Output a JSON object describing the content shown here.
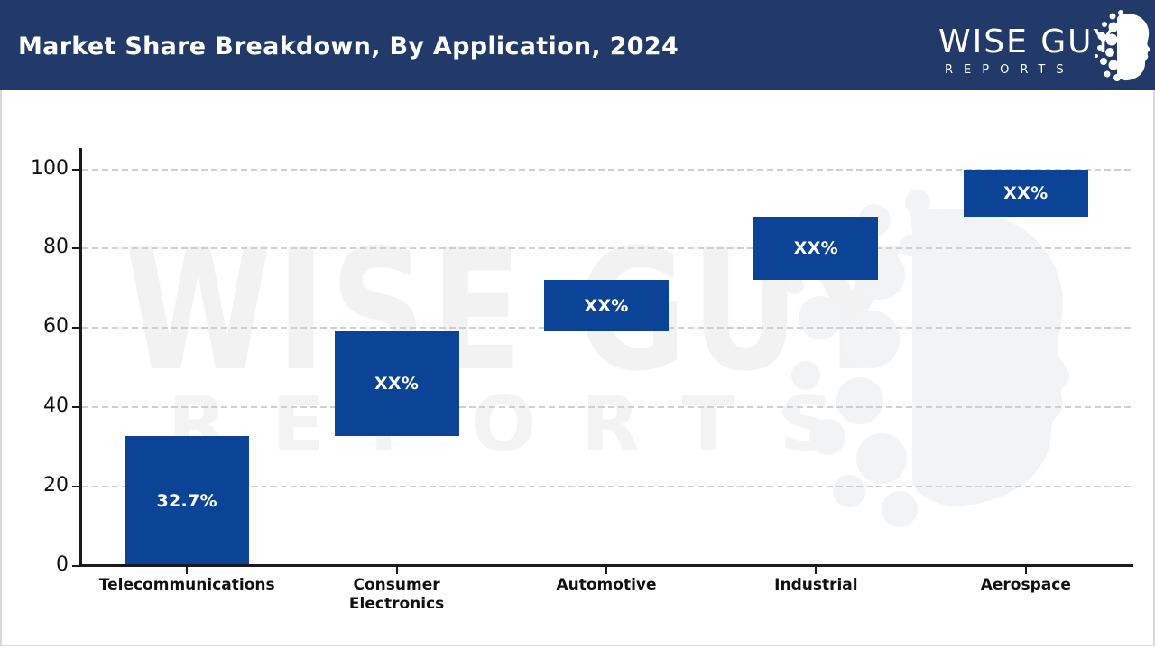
{
  "header": {
    "title": "Market Share Breakdown, By Application, 2024",
    "logo": {
      "line1": "WISE GUY",
      "line2": "REPORTS"
    }
  },
  "watermark": {
    "line1": "WISE GUY",
    "line2": "REPORTS"
  },
  "colors": {
    "header_bg": "#213a69",
    "bar_fill": "#0b4397",
    "bar_label": "#ffffff",
    "gridline": "#cfcfcf",
    "axis": "#1a1a1a",
    "watermark": "#f2f2f2"
  },
  "chart_data": {
    "type": "bar",
    "subtype": "waterfall",
    "title": "Market Share Breakdown, By Application, 2024",
    "xlabel": "",
    "ylabel": "",
    "categories": [
      "Telecommunications",
      "Consumer Electronics",
      "Automotive",
      "Industrial",
      "Aerospace"
    ],
    "segments": [
      {
        "category": "Telecommunications",
        "from": 0,
        "to": 32.7,
        "label": "32.7%"
      },
      {
        "category": "Consumer Electronics",
        "from": 32.7,
        "to": 59,
        "label": "XX%"
      },
      {
        "category": "Automotive",
        "from": 59,
        "to": 72,
        "label": "XX%"
      },
      {
        "category": "Industrial",
        "from": 72,
        "to": 88,
        "label": "XX%"
      },
      {
        "category": "Aerospace",
        "from": 88,
        "to": 100,
        "label": "XX%"
      }
    ],
    "yticks": [
      0,
      20,
      40,
      60,
      80,
      100
    ],
    "ylim": [
      0,
      105
    ],
    "grid": "horizontal-dashed",
    "legend": "none"
  }
}
